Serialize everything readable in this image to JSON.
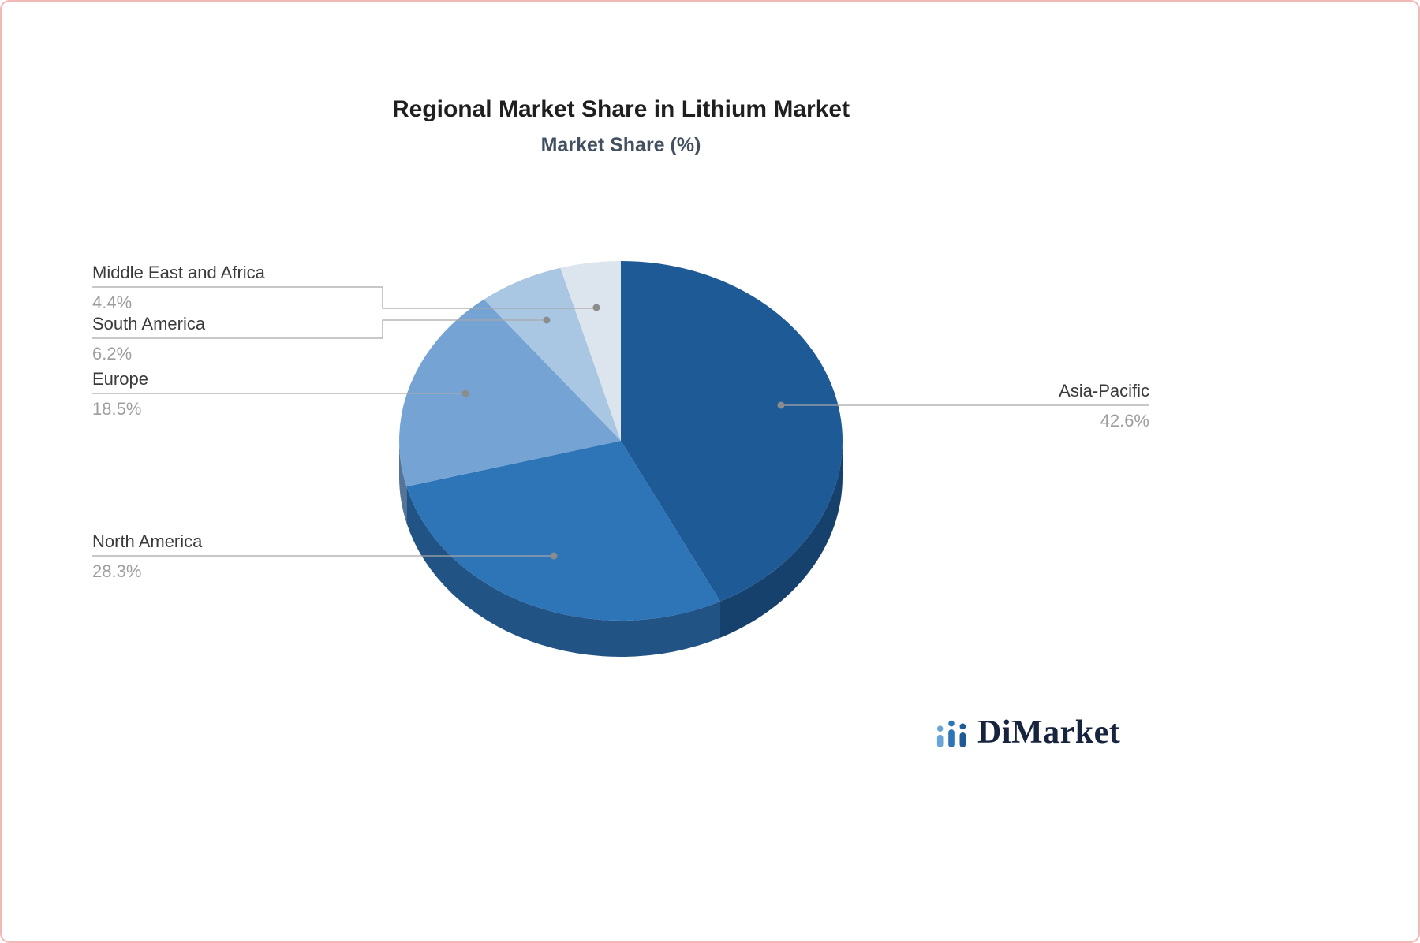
{
  "chart_data": {
    "type": "pie",
    "title": "Regional Market Share in Lithium Market",
    "subtitle": "Market Share (%)",
    "categories": [
      "Asia-Pacific",
      "North America",
      "Europe",
      "South America",
      "Middle East and Africa"
    ],
    "values": [
      42.6,
      28.3,
      18.5,
      6.2,
      4.4
    ],
    "value_labels": [
      "42.6%",
      "28.3%",
      "18.5%",
      "6.2%",
      "4.4%"
    ],
    "colors": [
      "#1e5a96",
      "#2e75b8",
      "#74a3d4",
      "#a9c6e3",
      "#dce4ee"
    ],
    "start_angle": 0,
    "direction": "clockwise",
    "style": "3d",
    "legend": "none",
    "labels_position": "outside-with-connectors",
    "connector_color": "#a8a8a8",
    "name_label_color": "#3a3a3a",
    "value_label_color": "#9e9e9e"
  },
  "brand": {
    "name": "DiMarket",
    "logo_icon": "bar-chart-dots-icon",
    "text_color": "#16243d",
    "accent": "#2e75b8"
  }
}
